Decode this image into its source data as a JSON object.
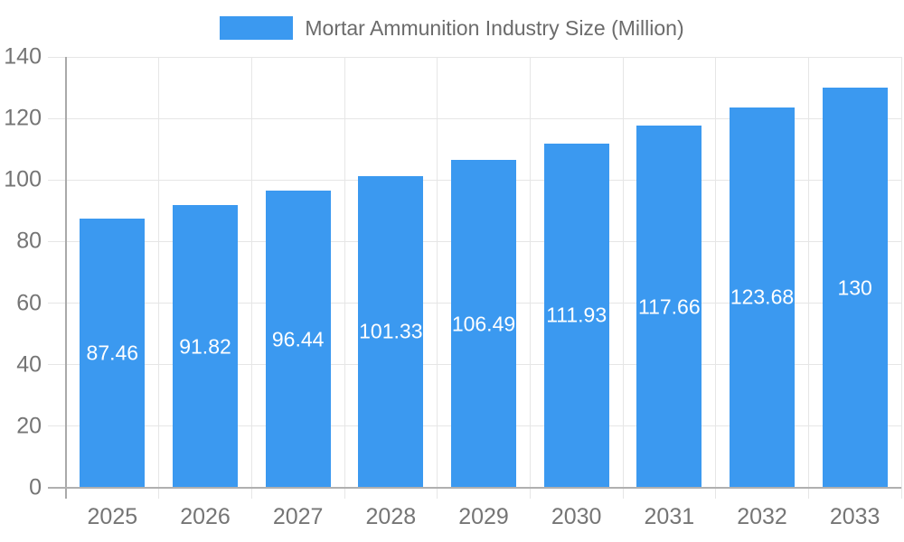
{
  "legend": {
    "series_label": "Mortar Ammunition Industry Size (Million)"
  },
  "chart_data": {
    "type": "bar",
    "title": "Mortar Ammunition Industry Size (Million)",
    "categories": [
      "2025",
      "2026",
      "2027",
      "2028",
      "2029",
      "2030",
      "2031",
      "2032",
      "2033"
    ],
    "series": [
      {
        "name": "Mortar Ammunition Industry Size (Million)",
        "values": [
          87.46,
          91.82,
          96.44,
          101.33,
          106.49,
          111.93,
          117.66,
          123.68,
          130
        ]
      }
    ],
    "value_labels": [
      "87.46",
      "91.82",
      "96.44",
      "101.33",
      "106.49",
      "111.93",
      "117.66",
      "123.68",
      "130"
    ],
    "xlabel": "",
    "ylabel": "",
    "ylim": [
      0,
      140
    ],
    "yticks": [
      0,
      20,
      40,
      60,
      80,
      100,
      120,
      140
    ],
    "grid": true,
    "legend_position": "top",
    "bar_labels_inside": true
  },
  "colors": {
    "bar": "#3B99F0",
    "gridline": "#e6e6e6",
    "axis_line": "#a9a9a9",
    "baseline": "#b0b0b0",
    "axis_label_text": "#757575",
    "legend_text": "#6b6b6b",
    "bar_label_text": "#ffffff",
    "background": "#ffffff"
  }
}
